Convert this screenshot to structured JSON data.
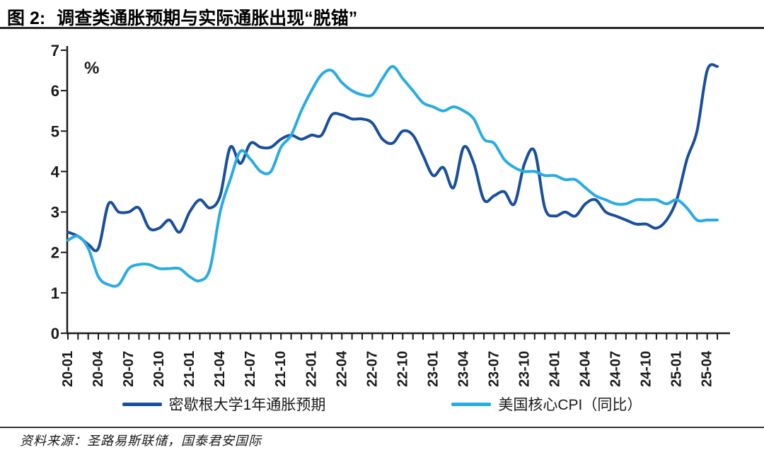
{
  "page": {
    "title_prefix": "图 2:",
    "title": "调查类通胀预期与实际通胀出现“脱锚”",
    "source_label": "资料来源：圣路易斯联储，国泰君安国际"
  },
  "chart_data": {
    "type": "line",
    "title": "调查类通胀预期与实际通胀出现“脱锚”",
    "xlabel": "",
    "ylabel": "%",
    "ylim": [
      0,
      7
    ],
    "y_ticks": [
      0,
      1,
      2,
      3,
      4,
      5,
      6,
      7
    ],
    "grid": false,
    "legend_position": "bottom",
    "axis_color": "#1a1a1a",
    "text_color": "#1a1a1a",
    "x_range": "monthly, 2020-01 to 2025-05",
    "x_tick_labels": [
      "20-01",
      "20-04",
      "20-07",
      "20-10",
      "21-01",
      "21-04",
      "21-07",
      "21-10",
      "22-01",
      "22-04",
      "22-07",
      "22-10",
      "23-01",
      "23-04",
      "23-07",
      "23-10",
      "24-01",
      "24-04",
      "24-07",
      "24-10",
      "25-01",
      "25-04"
    ],
    "x_label_every_n_months": 3,
    "series": [
      {
        "name": "密歇根大学1年通胀预期",
        "color": "#1A4F9D",
        "values": [
          2.5,
          2.4,
          2.2,
          2.1,
          3.2,
          3.0,
          3.0,
          3.1,
          2.6,
          2.6,
          2.8,
          2.5,
          3.0,
          3.3,
          3.1,
          3.4,
          4.6,
          4.2,
          4.7,
          4.6,
          4.6,
          4.8,
          4.9,
          4.8,
          4.9,
          4.9,
          5.4,
          5.4,
          5.3,
          5.3,
          5.2,
          4.8,
          4.7,
          5.0,
          4.9,
          4.4,
          3.9,
          4.1,
          3.6,
          4.6,
          4.2,
          3.3,
          3.4,
          3.5,
          3.2,
          4.2,
          4.5,
          3.1,
          2.9,
          3.0,
          2.9,
          3.2,
          3.3,
          3.0,
          2.9,
          2.8,
          2.7,
          2.7,
          2.6,
          2.8,
          3.3,
          4.3,
          5.0,
          6.5,
          6.6
        ]
      },
      {
        "name": "美国核心CPI（同比）",
        "color": "#29ACE3",
        "values": [
          2.3,
          2.4,
          2.1,
          1.4,
          1.2,
          1.2,
          1.6,
          1.7,
          1.7,
          1.6,
          1.6,
          1.6,
          1.4,
          1.3,
          1.6,
          3.0,
          3.8,
          4.5,
          4.3,
          4.0,
          4.0,
          4.6,
          4.9,
          5.5,
          6.0,
          6.4,
          6.5,
          6.2,
          6.0,
          5.9,
          5.9,
          6.3,
          6.6,
          6.3,
          6.0,
          5.7,
          5.6,
          5.5,
          5.6,
          5.5,
          5.3,
          4.8,
          4.7,
          4.3,
          4.1,
          4.0,
          4.0,
          3.9,
          3.9,
          3.8,
          3.8,
          3.6,
          3.4,
          3.3,
          3.2,
          3.2,
          3.3,
          3.3,
          3.3,
          3.2,
          3.3,
          3.1,
          2.8,
          2.8,
          2.8
        ]
      }
    ]
  }
}
